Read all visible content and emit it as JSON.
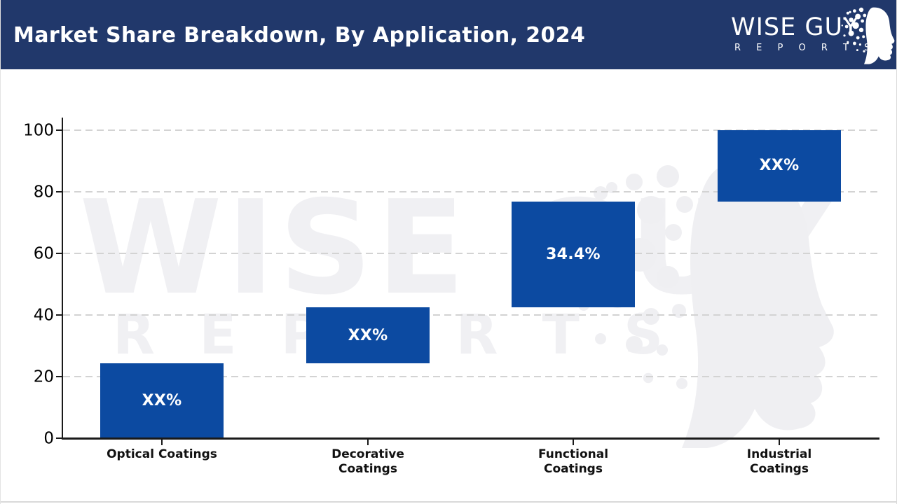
{
  "header": {
    "title": "Market Share Breakdown, By Application, 2024",
    "logo": {
      "wordmark": "WISE GUY",
      "subtext": "R E P O R T S"
    }
  },
  "watermark": {
    "wordmark": "WISE GUY",
    "subtext": "R E P O R T S"
  },
  "chart_data": {
    "type": "bar",
    "subtype": "floating stacked segments (waterfall-style market share bars)",
    "title": "Market Share Breakdown, By Application, 2024",
    "categories": [
      "Optical Coatings",
      "Decorative Coatings",
      "Functional Coatings",
      "Industrial Coatings"
    ],
    "category_label_lines": [
      [
        "Optical Coatings"
      ],
      [
        "Decorative",
        "Coatings"
      ],
      [
        "Functional",
        "Coatings"
      ],
      [
        "Industrial",
        "Coatings"
      ]
    ],
    "bars": [
      {
        "category": "Optical Coatings",
        "start": 0,
        "end": 24.3,
        "label": "XX%"
      },
      {
        "category": "Decorative Coatings",
        "start": 24.3,
        "end": 42.5,
        "label": "XX%"
      },
      {
        "category": "Functional Coatings",
        "start": 42.5,
        "end": 76.9,
        "label": "34.4%"
      },
      {
        "category": "Industrial Coatings",
        "start": 76.9,
        "end": 100,
        "label": "XX%"
      }
    ],
    "ylim": [
      0,
      100
    ],
    "yticks": [
      0,
      20,
      40,
      60,
      80,
      100
    ],
    "grid": "horizontal dashed",
    "legend": "none",
    "colors": {
      "bar": "#0C4AA1",
      "bar_label": "#FFFFFF",
      "header_bg": "#21386B",
      "gridline": "#D3D3D3",
      "axis": "#1A1A1A",
      "watermark": "#F0F0F3"
    }
  }
}
